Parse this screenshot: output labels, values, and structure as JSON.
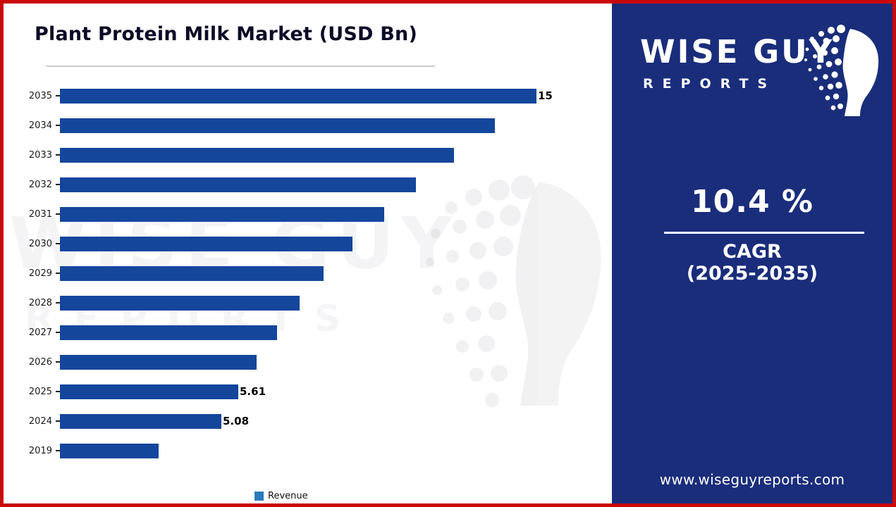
{
  "chart": {
    "title": "Plant Protein Milk Market (USD Bn)"
  },
  "chart_data": {
    "type": "bar",
    "orientation": "horizontal",
    "title": "Plant Protein Milk Market (USD Bn)",
    "xlabel": "",
    "ylabel": "",
    "xlim": [
      0,
      16
    ],
    "grid": false,
    "legend_position": "bottom-center",
    "series_name": "Revenue",
    "bar_color": "#14469c",
    "categories": [
      "2035",
      "2034",
      "2033",
      "2032",
      "2031",
      "2030",
      "2029",
      "2028",
      "2027",
      "2026",
      "2025",
      "2024",
      "2019"
    ],
    "values": [
      15,
      13.7,
      12.4,
      11.2,
      10.2,
      9.2,
      8.3,
      7.55,
      6.84,
      6.19,
      5.61,
      5.08,
      3.1
    ],
    "value_labels": [
      "15",
      "",
      "",
      "",
      "",
      "",
      "",
      "",
      "",
      "",
      "5.61",
      "5.08",
      ""
    ]
  },
  "legend": {
    "label": "Revenue",
    "color": "#2b7bba"
  },
  "watermark": {
    "line1": "WISE GUY",
    "line2": "REPORTS"
  },
  "brand": {
    "logo_top": "WISE GUY",
    "logo_bottom": "REPORTS",
    "cagr_value": "10.4 %",
    "cagr_label": "CAGR",
    "cagr_range": "(2025-2035)",
    "website": "www.wiseguyreports.com",
    "panel_color": "#1a2d7b",
    "border_color": "#c9090a"
  }
}
